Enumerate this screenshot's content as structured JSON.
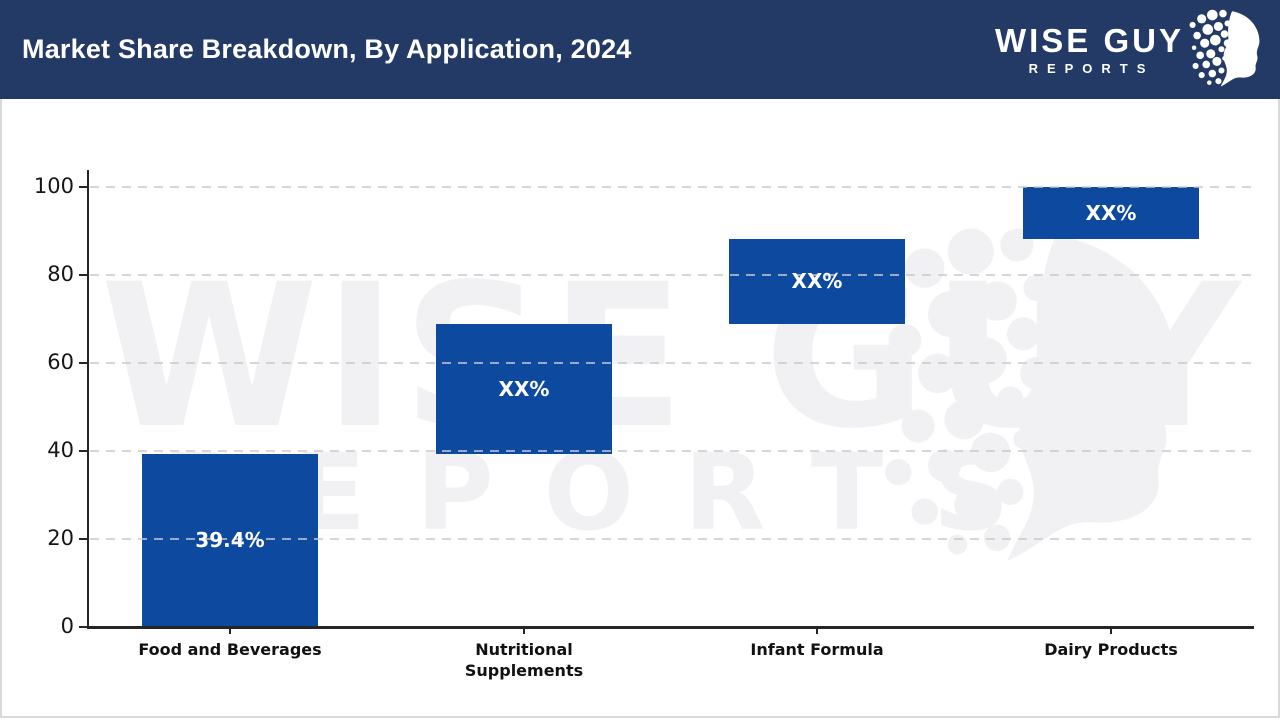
{
  "header": {
    "title": "Market Share Breakdown, By Application, 2024",
    "logo": {
      "line1": "WISE GUY",
      "line2": "REPORTS"
    }
  },
  "watermark": {
    "line1": "WISE GUY",
    "line2": "REPORTS"
  },
  "chart_data": {
    "type": "bar",
    "subtype": "waterfall",
    "title": "Market Share Breakdown, By Application, 2024",
    "categories": [
      "Food and Beverages",
      "Nutritional\nSupplements",
      "Infant Formula",
      "Dairy Products"
    ],
    "segments": [
      {
        "category": "Food and Beverages",
        "start": 0,
        "end": 39.4,
        "value": 39.4,
        "label": "39.4%"
      },
      {
        "category": "Nutritional Supplements",
        "start": 39.4,
        "end": 68.9,
        "value": 29.5,
        "label": "XX%"
      },
      {
        "category": "Infant Formula",
        "start": 68.9,
        "end": 88.2,
        "value": 19.3,
        "label": "XX%"
      },
      {
        "category": "Dairy Products",
        "start": 88.2,
        "end": 100,
        "value": 11.8,
        "label": "XX%"
      }
    ],
    "xlabel": "",
    "ylabel": "",
    "ylim": [
      0,
      100
    ],
    "yticks": [
      0,
      20,
      40,
      60,
      80,
      100
    ],
    "grid": "dashed horizontal",
    "legend": false
  },
  "colors": {
    "header_bg": "#233a66",
    "title_text": "#ffffff",
    "bar": "#0d4a9f",
    "bar_label": "#ffffff",
    "axis": "#262626",
    "grid": "#c9c9c9",
    "tick_text": "#161616",
    "watermark": "#f1f1f4",
    "panel_border": "#d9d9d9"
  }
}
